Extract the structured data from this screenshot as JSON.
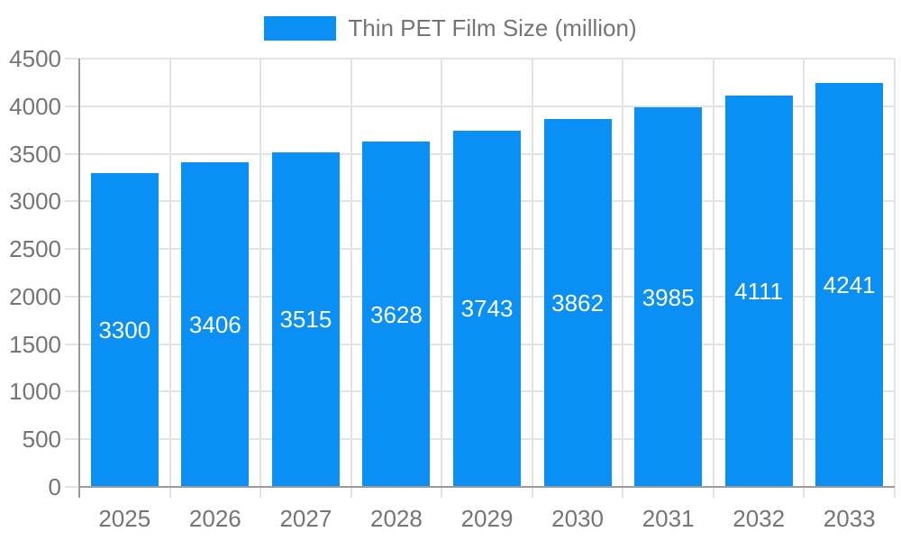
{
  "legend": {
    "label": "Thin PET Film Size (million)"
  },
  "chart_data": {
    "type": "bar",
    "title": "",
    "categories": [
      "2025",
      "2026",
      "2027",
      "2028",
      "2029",
      "2030",
      "2031",
      "2032",
      "2033"
    ],
    "series": [
      {
        "name": "Thin PET Film Size (million)",
        "values": [
          3300,
          3406,
          3515,
          3628,
          3743,
          3862,
          3985,
          4111,
          4241
        ]
      }
    ],
    "xlabel": "",
    "ylabel": "",
    "ylim": [
      0,
      4500
    ],
    "ytick_step": 500,
    "yticks": [
      0,
      500,
      1000,
      1500,
      2000,
      2500,
      3000,
      3500,
      4000,
      4500
    ],
    "grid": true,
    "legend_position": "top",
    "value_labels": "inside-middle",
    "colors": {
      "bar": "#0a8ff5",
      "bar_value_text": "#ffffff",
      "axis_text": "#757575",
      "grid_line": "#e3e3e3",
      "axis_line": "#9b9b9b",
      "background": "#ffffff"
    }
  }
}
